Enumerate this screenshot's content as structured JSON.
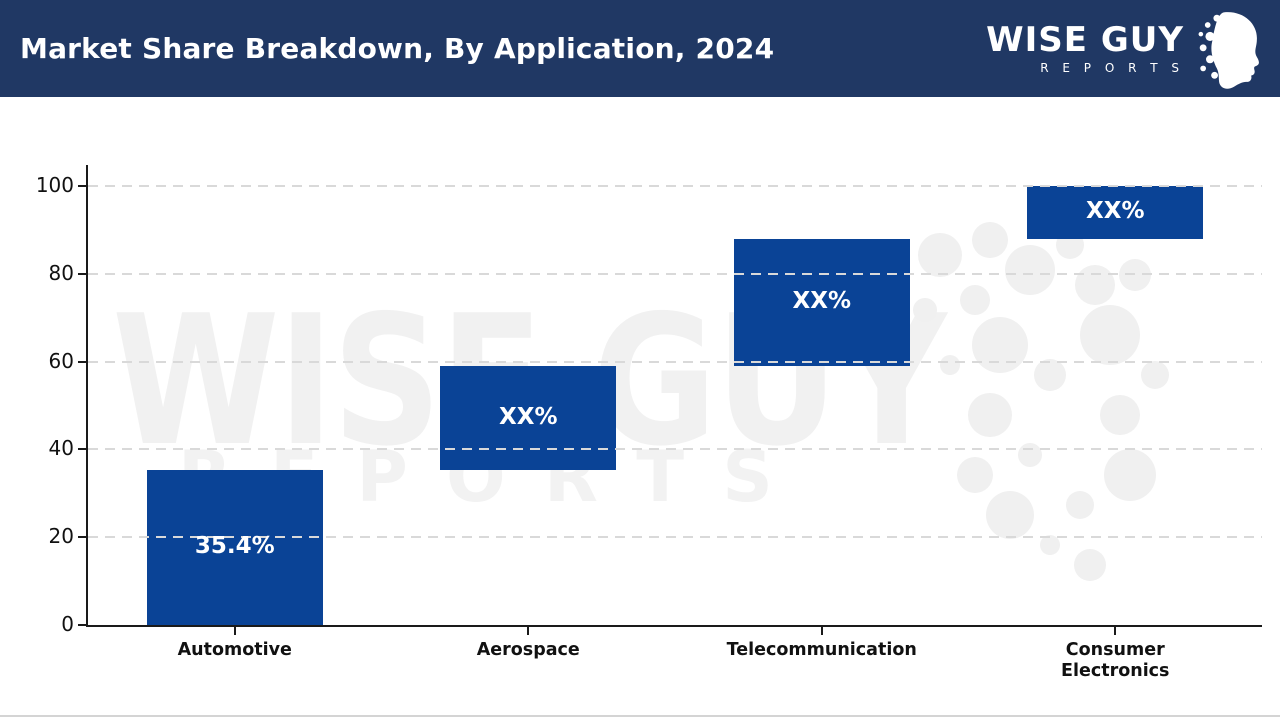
{
  "header": {
    "title": "Market Share Breakdown, By Application, 2024",
    "logo": {
      "name": "WISE GUY",
      "tagline": "R E P O R T S"
    }
  },
  "watermark": {
    "name": "WISE GUY",
    "tagline": "R E P O R T S"
  },
  "chart_data": {
    "type": "bar",
    "subtype": "waterfall",
    "title": "Market Share Breakdown, By Application, 2024",
    "categories": [
      "Automotive",
      "Aerospace",
      "Telecommunication",
      "Consumer Electronics"
    ],
    "segments": [
      {
        "category": "Automotive",
        "category_lines": [
          "Automotive"
        ],
        "start": 0,
        "end": 35.4,
        "label": "35.4%"
      },
      {
        "category": "Aerospace",
        "category_lines": [
          "Aerospace"
        ],
        "start": 35.4,
        "end": 59,
        "label": "XX%"
      },
      {
        "category": "Telecommunication",
        "category_lines": [
          "Telecommunication"
        ],
        "start": 59,
        "end": 88,
        "label": "XX%"
      },
      {
        "category": "Consumer Electronics",
        "category_lines": [
          "Consumer",
          "Electronics"
        ],
        "start": 88,
        "end": 100,
        "label": "XX%"
      }
    ],
    "ylim": [
      0,
      100
    ],
    "yticks": [
      0,
      20,
      40,
      60,
      80,
      100
    ],
    "grid": "horizontal-dashed",
    "legend": "none",
    "colors": {
      "bar": "#0a4396",
      "bar_label": "#ffffff",
      "grid": "#d9d9d9",
      "axis": "#1a1a1a",
      "header_bg": "#203864",
      "watermark": "#f1f1f1"
    }
  }
}
